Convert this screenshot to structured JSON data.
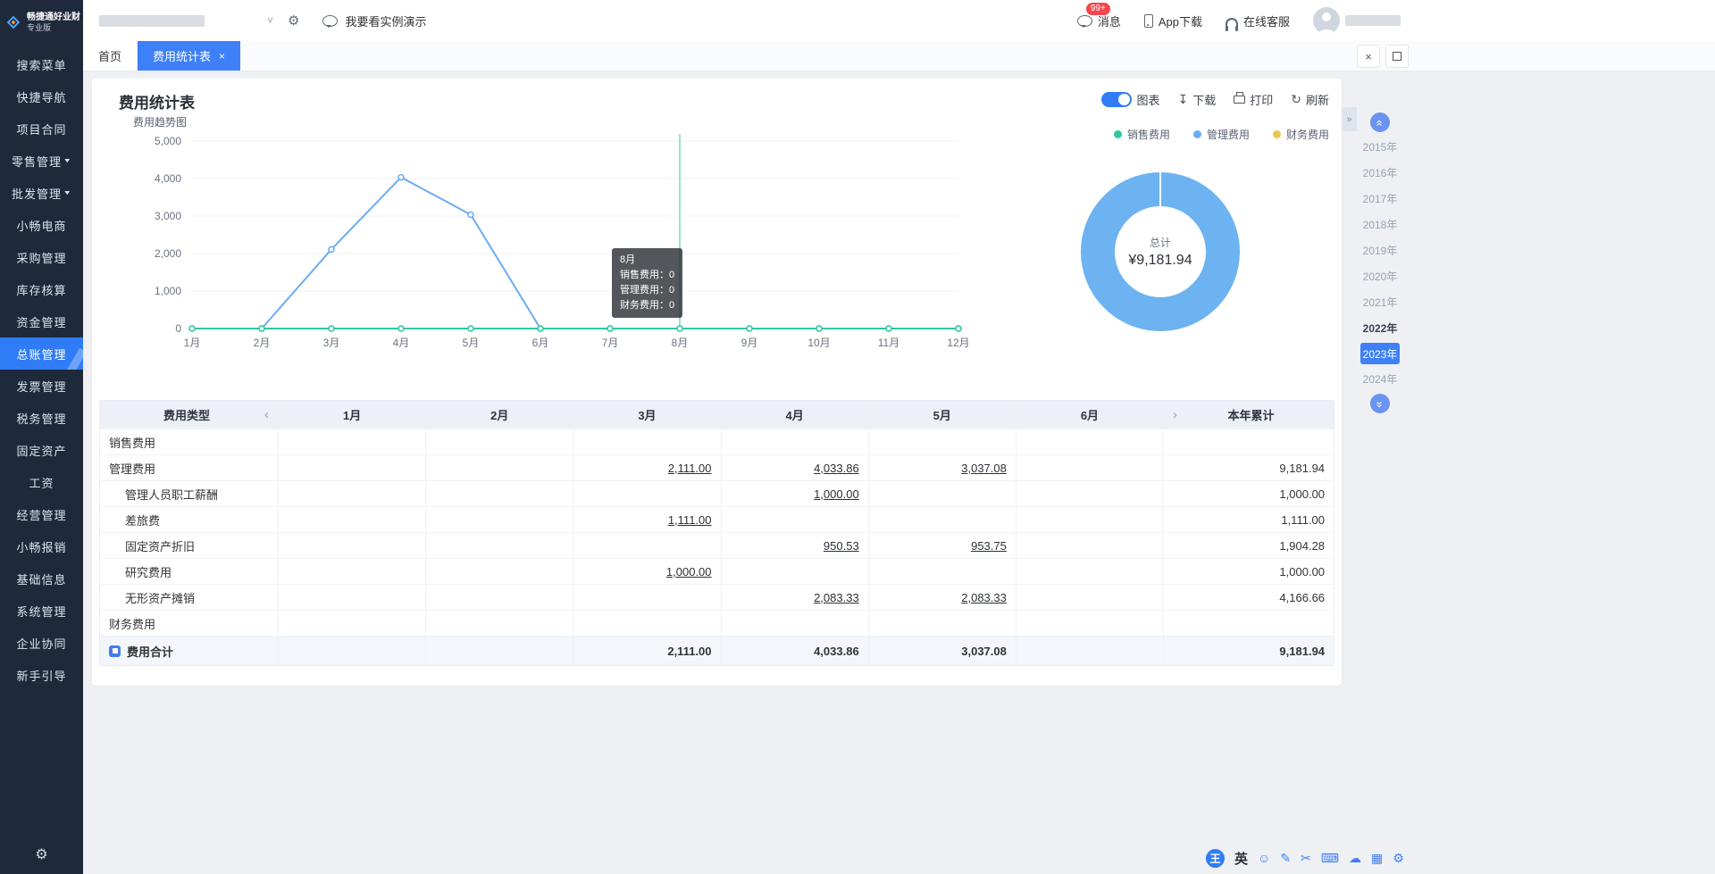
{
  "icons": {
    "close": "×",
    "chevron_down": "˅",
    "dropdown_arrow": "▼",
    "gear": "⚙",
    "collapse_right": "»",
    "chev_left": "‹",
    "chev_right": "›",
    "double_chevron_up": "«",
    "double_chevron_down": "»",
    "download": "↧",
    "refresh": "↻"
  },
  "colors": {
    "accent": "#2f7cf6",
    "tab_active": "#3e80f8",
    "donut": "#6db3f2",
    "badge": "#f5464d"
  },
  "sidebar": {
    "logo_title": "畅捷通好业财",
    "logo_subtitle": "专业版",
    "items": [
      {
        "label": "搜索菜单"
      },
      {
        "label": "快捷导航"
      },
      {
        "label": "项目合同"
      },
      {
        "label": "零售管理",
        "arrow": true
      },
      {
        "label": "批发管理",
        "arrow": true
      },
      {
        "label": "小畅电商"
      },
      {
        "label": "采购管理"
      },
      {
        "label": "库存核算"
      },
      {
        "label": "资金管理"
      },
      {
        "label": "总账管理",
        "active": true
      },
      {
        "label": "发票管理"
      },
      {
        "label": "税务管理"
      },
      {
        "label": "固定资产"
      },
      {
        "label": "工资"
      },
      {
        "label": "经营管理"
      },
      {
        "label": "小畅报销"
      },
      {
        "label": "基础信息"
      },
      {
        "label": "系统管理"
      },
      {
        "label": "企业协同"
      },
      {
        "label": "新手引导"
      }
    ]
  },
  "topbar": {
    "demo_text": "我要看实例演示",
    "messages_label": "消息",
    "messages_badge": "99+",
    "app_download_label": "App下载",
    "service_label": "在线客服"
  },
  "tabs": {
    "home": "首页",
    "active": "费用统计表"
  },
  "page": {
    "title": "费用统计表",
    "toolbar": {
      "chart_toggle_label": "图表",
      "download_label": "下载",
      "print_label": "打印",
      "refresh_label": "刷新"
    }
  },
  "chart_data": {
    "type": "line",
    "title": "费用趋势图",
    "categories": [
      "1月",
      "2月",
      "3月",
      "4月",
      "5月",
      "6月",
      "7月",
      "8月",
      "9月",
      "10月",
      "11月",
      "12月"
    ],
    "series": [
      {
        "name": "销售费用",
        "color": "#2ec7a0",
        "values": [
          0,
          0,
          0,
          0,
          0,
          0,
          0,
          0,
          0,
          0,
          0,
          0
        ]
      },
      {
        "name": "管理费用",
        "color": "#6aabf5",
        "values": [
          null,
          0,
          2111.0,
          4033.86,
          3037.08,
          0,
          0,
          0,
          0,
          0,
          0,
          0
        ]
      },
      {
        "name": "财务费用",
        "color": "#e8c64a",
        "values": [
          0,
          0,
          0,
          0,
          0,
          0,
          0,
          0,
          0,
          0,
          0,
          0
        ]
      }
    ],
    "ylim": [
      0,
      5000
    ],
    "ytick_step": 1000,
    "grid": true,
    "legend_position": "top-right",
    "tooltip": {
      "title": "8月",
      "month_index": 7,
      "lines": [
        "销售费用：0",
        "管理费用：0",
        "财务费用：0"
      ]
    }
  },
  "donut": {
    "label": "总计",
    "value": "¥9,181.94",
    "total": 9181.94,
    "slices": [
      {
        "name": "管理费用",
        "value": 9181.94
      }
    ]
  },
  "years": {
    "items": [
      "2015年",
      "2016年",
      "2017年",
      "2018年",
      "2019年",
      "2020年",
      "2021年",
      "2022年",
      "2023年",
      "2024年"
    ],
    "selected": "2023年",
    "emphasis": "2022年"
  },
  "table": {
    "col_type": "费用类型",
    "months": [
      "1月",
      "2月",
      "3月",
      "4月",
      "5月",
      "6月"
    ],
    "total_col": "本年累计",
    "rows": [
      {
        "name": "销售费用",
        "indent": 0,
        "cells": [
          "",
          "",
          "",
          "",
          "",
          ""
        ],
        "total": ""
      },
      {
        "name": "管理费用",
        "indent": 0,
        "cells": [
          "",
          "",
          "2,111.00",
          "4,033.86",
          "3,037.08",
          ""
        ],
        "total": "9,181.94"
      },
      {
        "name": "管理人员职工薪酬",
        "indent": 1,
        "cells": [
          "",
          "",
          "",
          "1,000.00",
          "",
          ""
        ],
        "total": "1,000.00"
      },
      {
        "name": "差旅费",
        "indent": 1,
        "cells": [
          "",
          "",
          "1,111.00",
          "",
          "",
          ""
        ],
        "total": "1,111.00"
      },
      {
        "name": "固定资产折旧",
        "indent": 1,
        "cells": [
          "",
          "",
          "",
          "950.53",
          "953.75",
          ""
        ],
        "total": "1,904.28"
      },
      {
        "name": "研究费用",
        "indent": 1,
        "cells": [
          "",
          "",
          "1,000.00",
          "",
          "",
          ""
        ],
        "total": "1,000.00"
      },
      {
        "name": "无形资产摊销",
        "indent": 1,
        "cells": [
          "",
          "",
          "",
          "2,083.33",
          "2,083.33",
          ""
        ],
        "total": "4,166.66"
      },
      {
        "name": "财务费用",
        "indent": 0,
        "cells": [
          "",
          "",
          "",
          "",
          "",
          ""
        ],
        "total": ""
      }
    ],
    "total_row": {
      "name": "费用合计",
      "cells": [
        "",
        "",
        "2,111.00",
        "4,033.86",
        "3,037.08",
        ""
      ],
      "total": "9,181.94"
    }
  },
  "ime": {
    "logo": "王",
    "lang": "英",
    "icons": [
      {
        "name": "ime-emoji-icon",
        "glyph": "☺"
      },
      {
        "name": "ime-pen-icon",
        "glyph": "✎"
      },
      {
        "name": "ime-scissors-icon",
        "glyph": "✂"
      },
      {
        "name": "ime-keyboard-icon",
        "glyph": "⌨"
      },
      {
        "name": "ime-cloud-icon",
        "glyph": "☁"
      },
      {
        "name": "ime-grid-icon",
        "glyph": "▦"
      },
      {
        "name": "ime-settings-icon",
        "glyph": "⚙"
      }
    ]
  }
}
